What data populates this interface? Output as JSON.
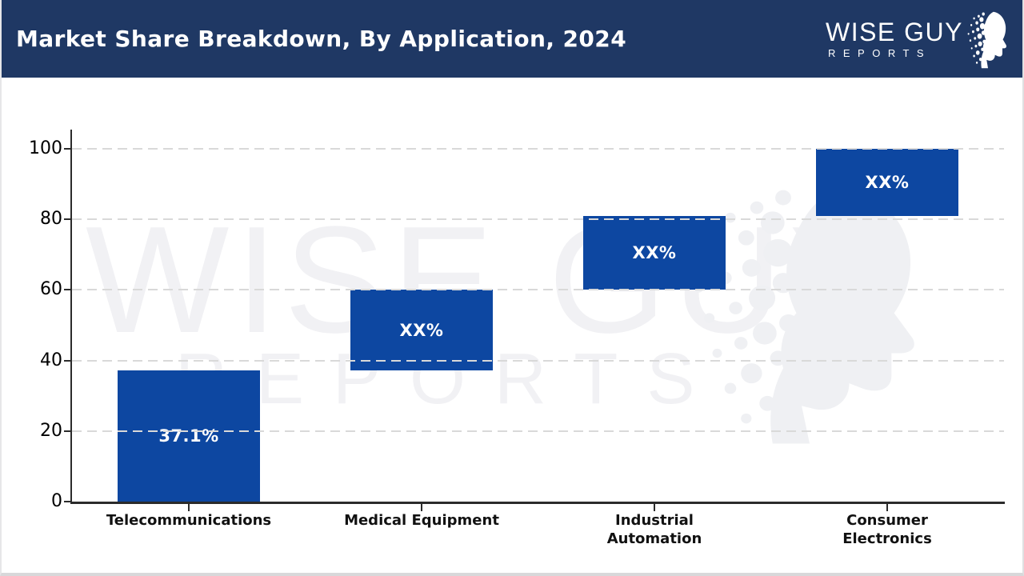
{
  "header": {
    "title": "Market Share Breakdown, By Application, 2024",
    "logo": {
      "brand": "WISE GUY",
      "sub": "REPORTS"
    }
  },
  "watermark": {
    "brand": "WISE GUY",
    "sub": "REPORTS"
  },
  "colors": {
    "header_bg": "#1f3864",
    "bar": "#0d47a1",
    "grid": "#d9d9d9",
    "axis": "#2b2b2b",
    "bar_label": "#ffffff",
    "watermark": "#f1f1f4"
  },
  "chart_data": {
    "type": "bar",
    "subtype": "waterfall",
    "title": "Market Share Breakdown, By Application, 2024",
    "categories": [
      "Telecommunications",
      "Medical Equipment",
      "Industrial\nAutomation",
      "Consumer\nElectronics"
    ],
    "segments": [
      {
        "category": "Telecommunications",
        "start": 0,
        "end": 37.1,
        "label": "37.1%"
      },
      {
        "category": "Medical Equipment",
        "start": 37.1,
        "end": 60.0,
        "label": "XX%"
      },
      {
        "category": "Industrial Automation",
        "start": 60.0,
        "end": 80.9,
        "label": "XX%"
      },
      {
        "category": "Consumer Electronics",
        "start": 80.9,
        "end": 100.0,
        "label": "XX%"
      }
    ],
    "ylim": [
      0,
      100
    ],
    "yticks": [
      0,
      20,
      40,
      60,
      80,
      100
    ],
    "xlabel": "",
    "ylabel": "",
    "grid": "horizontal-dashed",
    "legend": "none"
  }
}
